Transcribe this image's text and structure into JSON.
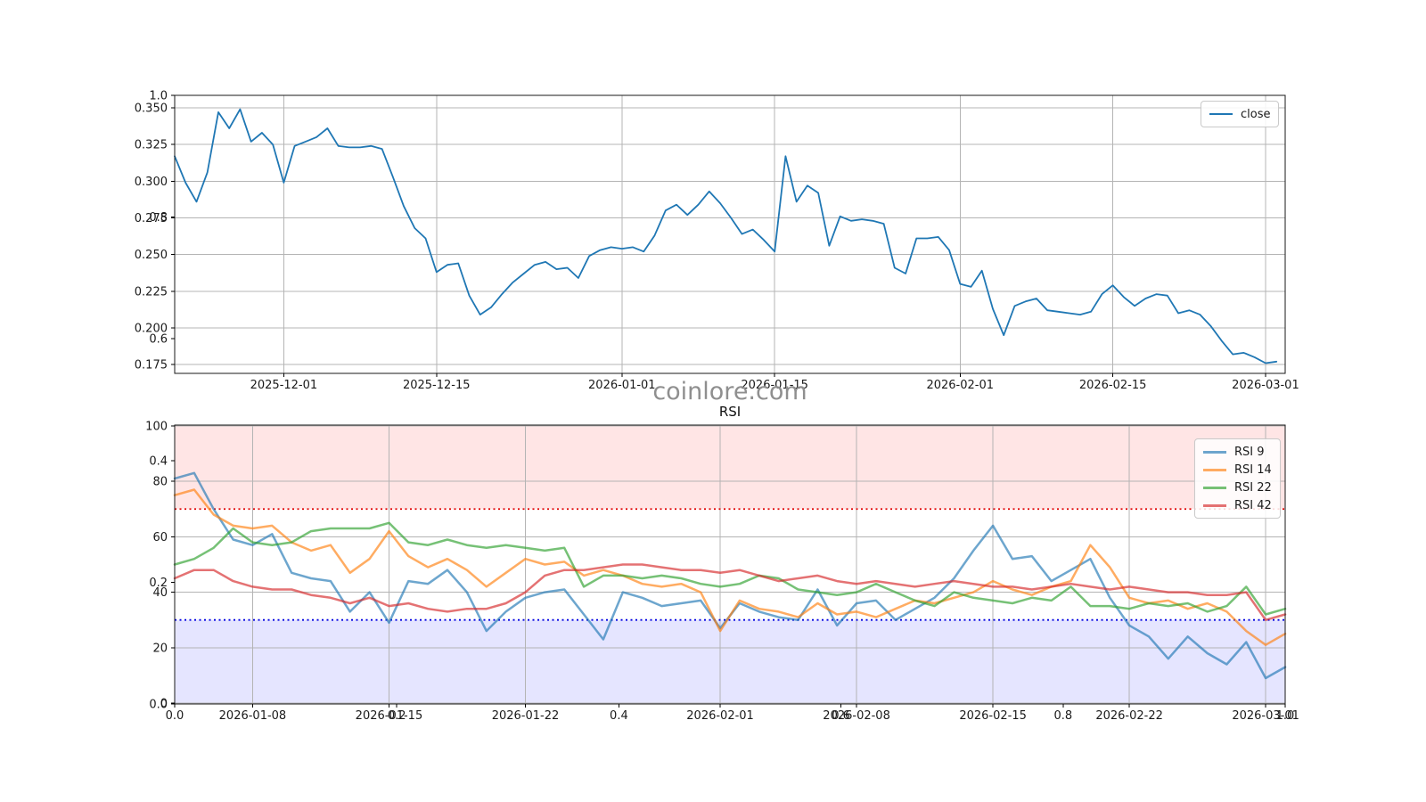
{
  "watermark": "coinlore.com",
  "rsi_title": "RSI",
  "price_legend": {
    "items": [
      {
        "label": "close"
      }
    ]
  },
  "rsi_legend": {
    "items": [
      {
        "label": "RSI 9"
      },
      {
        "label": "RSI 14"
      },
      {
        "label": "RSI 22"
      },
      {
        "label": "RSI 42"
      }
    ]
  },
  "colors": {
    "close": "#1f77b4",
    "rsi9": "#1f77b4",
    "rsi14": "#ff7f0e",
    "rsi22": "#2ca02c",
    "rsi42": "#d62728",
    "grid": "#b4b4b4",
    "spine": "#1a1a1a",
    "overbought_band": "rgba(255,0,0,0.10)",
    "oversold_band": "rgba(0,0,255,0.10)",
    "overbought_line": "#e00000",
    "oversold_line": "#0000e0",
    "watermark": "#8f8f8f"
  },
  "chart_data": [
    {
      "type": "line",
      "name": "price",
      "start_date": "2025-11-21",
      "frequency": "daily",
      "xlim": [
        0,
        101.8
      ],
      "ylim": [
        0.169,
        0.3585
      ],
      "grid": true,
      "legend_position": "upper right",
      "y_ticks": [
        {
          "label": "0.175",
          "value": 0.175
        },
        {
          "label": "0.200",
          "value": 0.2
        },
        {
          "label": "0.225",
          "value": 0.225
        },
        {
          "label": "0.250",
          "value": 0.25
        },
        {
          "label": "0.275",
          "value": 0.275
        },
        {
          "label": "0.300",
          "value": 0.3
        },
        {
          "label": "0.325",
          "value": 0.325
        },
        {
          "label": "0.350",
          "value": 0.35
        }
      ],
      "x_ticks": [
        {
          "label": "2025-12-01",
          "day": 10
        },
        {
          "label": "2025-12-15",
          "day": 24
        },
        {
          "label": "2026-01-01",
          "day": 41
        },
        {
          "label": "2026-01-15",
          "day": 55
        },
        {
          "label": "2026-02-01",
          "day": 72
        },
        {
          "label": "2026-02-15",
          "day": 86
        },
        {
          "label": "2026-03-01",
          "day": 100
        }
      ],
      "series": [
        {
          "name": "close",
          "color": "#1f77b4",
          "width": 1.8,
          "opacity": 1,
          "values": [
            0.317,
            0.299,
            0.286,
            0.306,
            0.347,
            0.336,
            0.349,
            0.327,
            0.333,
            0.325,
            0.299,
            0.324,
            0.327,
            0.33,
            0.336,
            0.324,
            0.323,
            0.323,
            0.324,
            0.322,
            0.303,
            0.283,
            0.268,
            0.261,
            0.238,
            0.243,
            0.244,
            0.222,
            0.209,
            0.214,
            0.223,
            0.231,
            0.237,
            0.243,
            0.245,
            0.24,
            0.241,
            0.234,
            0.249,
            0.253,
            0.255,
            0.254,
            0.255,
            0.252,
            0.263,
            0.28,
            0.284,
            0.277,
            0.284,
            0.293,
            0.285,
            0.275,
            0.264,
            0.267,
            0.26,
            0.252,
            0.317,
            0.286,
            0.297,
            0.292,
            0.256,
            0.276,
            0.273,
            0.274,
            0.273,
            0.271,
            0.241,
            0.237,
            0.261,
            0.261,
            0.262,
            0.253,
            0.23,
            0.228,
            0.239,
            0.213,
            0.195,
            0.215,
            0.218,
            0.22,
            0.212,
            0.211,
            0.21,
            0.209,
            0.211,
            0.223,
            0.229,
            0.221,
            0.215,
            0.22,
            0.223,
            0.222,
            0.21,
            0.212,
            0.209,
            0.201,
            0.191,
            0.182,
            0.183,
            0.18,
            0.176,
            0.177
          ]
        }
      ]
    },
    {
      "type": "line",
      "name": "rsi",
      "title": "RSI",
      "start_date": "2026-01-04",
      "frequency": "daily",
      "xlim": [
        0,
        57
      ],
      "ylim": [
        -0.32,
        100.3
      ],
      "grid": true,
      "legend_position": "upper right",
      "y_ticks": [
        {
          "label": "0",
          "value": 0
        },
        {
          "label": "20",
          "value": 20
        },
        {
          "label": "40",
          "value": 40
        },
        {
          "label": "60",
          "value": 60
        },
        {
          "label": "80",
          "value": 80
        },
        {
          "label": "100",
          "value": 100
        }
      ],
      "x_ticks": [
        {
          "label": "2026-01-08",
          "day": 4
        },
        {
          "label": "2026-01-15",
          "day": 11
        },
        {
          "label": "2026-01-22",
          "day": 18
        },
        {
          "label": "2026-02-01",
          "day": 28
        },
        {
          "label": "2026-02-08",
          "day": 35
        },
        {
          "label": "2026-02-15",
          "day": 42
        },
        {
          "label": "2026-02-22",
          "day": 49
        },
        {
          "label": "2026-03-01",
          "day": 56
        }
      ],
      "bands": [
        {
          "name": "overbought",
          "from": 70,
          "to": 100.3,
          "color": "rgba(255,0,0,0.10)"
        },
        {
          "name": "oversold",
          "from": -0.32,
          "to": 30,
          "color": "rgba(0,0,255,0.10)"
        }
      ],
      "hlines": [
        {
          "name": "overbought-threshold",
          "y": 70,
          "color": "#e00000"
        },
        {
          "name": "oversold-threshold",
          "y": 30,
          "color": "#0000e0"
        }
      ],
      "series": [
        {
          "name": "RSI 9",
          "color": "#1f77b4",
          "width": 2.5,
          "opacity": 0.65,
          "values": [
            81,
            83,
            70,
            59,
            57,
            61,
            47,
            45,
            44,
            33,
            40,
            29,
            44,
            43,
            48,
            40,
            26,
            33,
            38,
            40,
            41,
            32,
            23,
            40,
            38,
            35,
            36,
            37,
            27,
            36,
            33,
            31,
            30,
            41,
            28,
            36,
            37,
            30,
            34,
            38,
            45,
            55,
            64,
            52,
            53,
            44,
            48,
            52,
            38,
            28,
            24,
            16,
            24,
            18,
            14,
            22,
            9,
            13
          ]
        },
        {
          "name": "RSI 14",
          "color": "#ff7f0e",
          "width": 2.5,
          "opacity": 0.65,
          "values": [
            75,
            77,
            68,
            64,
            63,
            64,
            58,
            55,
            57,
            47,
            52,
            62,
            53,
            49,
            52,
            48,
            42,
            47,
            52,
            50,
            51,
            46,
            48,
            46,
            43,
            42,
            43,
            40,
            26,
            37,
            34,
            33,
            31,
            36,
            32,
            33,
            31,
            34,
            37,
            36,
            38,
            40,
            44,
            41,
            39,
            42,
            44,
            57,
            49,
            38,
            36,
            37,
            34,
            36,
            33,
            26,
            21,
            25
          ]
        },
        {
          "name": "RSI 22",
          "color": "#2ca02c",
          "width": 2.5,
          "opacity": 0.65,
          "values": [
            50,
            52,
            56,
            63,
            58,
            57,
            58,
            62,
            63,
            63,
            63,
            65,
            58,
            57,
            59,
            57,
            56,
            57,
            56,
            55,
            56,
            42,
            46,
            46,
            45,
            46,
            45,
            43,
            42,
            43,
            46,
            45,
            41,
            40,
            39,
            40,
            43,
            40,
            37,
            35,
            40,
            38,
            37,
            36,
            38,
            37,
            42,
            35,
            35,
            34,
            36,
            35,
            36,
            33,
            35,
            42,
            32,
            34
          ]
        },
        {
          "name": "RSI 42",
          "color": "#d62728",
          "width": 2.5,
          "opacity": 0.65,
          "values": [
            45,
            48,
            48,
            44,
            42,
            41,
            41,
            39,
            38,
            36,
            38,
            35,
            36,
            34,
            33,
            34,
            34,
            36,
            40,
            46,
            48,
            48,
            49,
            50,
            50,
            49,
            48,
            48,
            47,
            48,
            46,
            44,
            45,
            46,
            44,
            43,
            44,
            43,
            42,
            43,
            44,
            43,
            42,
            42,
            41,
            42,
            43,
            42,
            41,
            42,
            41,
            40,
            40,
            39,
            39,
            40,
            30,
            32
          ]
        }
      ]
    },
    {
      "type": "stray-axis",
      "x_ticks": [
        "0.0",
        "0.2",
        "0.4",
        "0.6",
        "0.8",
        "1.0"
      ],
      "y_ticks": [
        "1.0",
        "0.8",
        "0.6",
        "0.4",
        "0.2",
        "0.0"
      ]
    }
  ]
}
